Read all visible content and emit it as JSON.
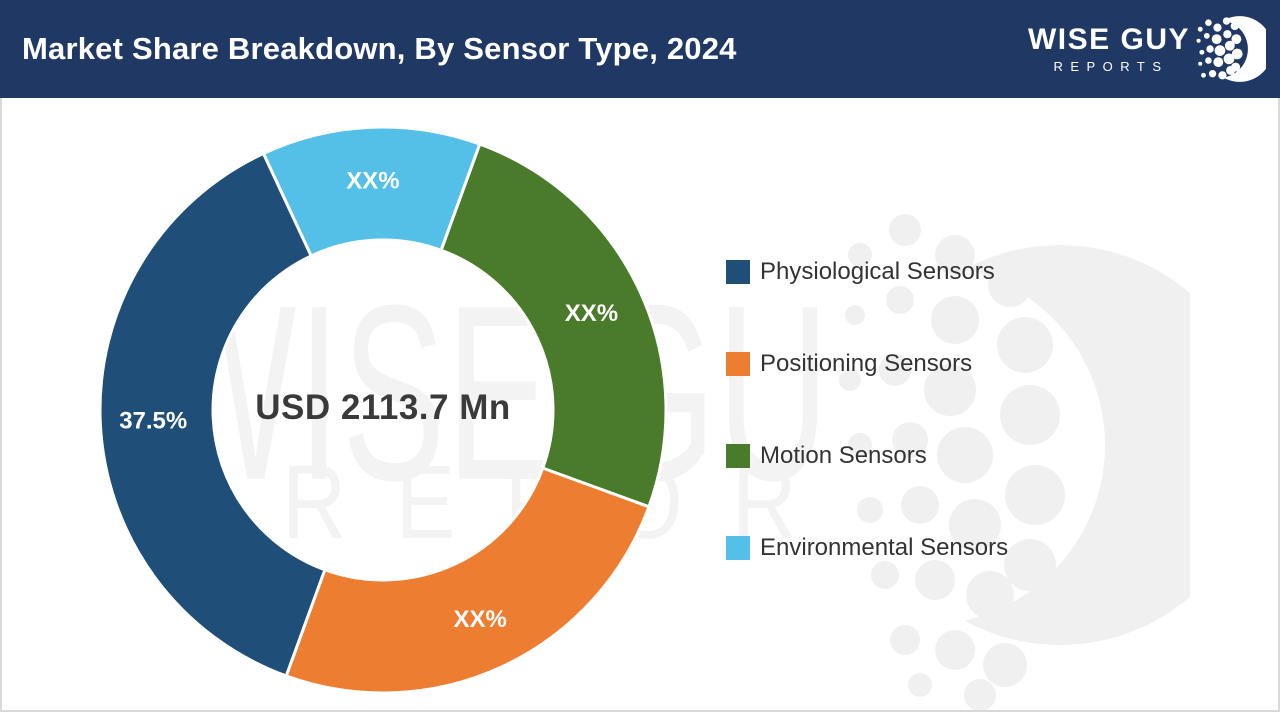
{
  "header": {
    "title": "Market Share Breakdown, By Sensor Type, 2024",
    "logo": {
      "name": "WISE GUY",
      "sub": "REPORTS"
    }
  },
  "chart_data": {
    "type": "donut",
    "title": "Market Share Breakdown, By Sensor Type, 2024",
    "center_label": "USD 2113.7 Mn",
    "start_bearing_deg": -25,
    "direction": "clockwise",
    "segments": [
      {
        "label": "Environmental Sensors",
        "value_label": "XX%",
        "percent": 12.5,
        "color": "#54c0e8"
      },
      {
        "label": "Motion Sensors",
        "value_label": "XX%",
        "percent": 25,
        "color": "#4a7b2b"
      },
      {
        "label": "Positioning Sensors",
        "value_label": "XX%",
        "percent": 25,
        "color": "#ed7d31"
      },
      {
        "label": "Physiological Sensors",
        "value_label": "37.5%",
        "percent": 37.5,
        "color": "#1f4e78"
      }
    ],
    "legend": [
      {
        "label": "Physiological Sensors",
        "color": "#1f4e78"
      },
      {
        "label": "Positioning Sensors",
        "color": "#ed7d31"
      },
      {
        "label": "Motion Sensors",
        "color": "#4a7b2b"
      },
      {
        "label": "Environmental Sensors",
        "color": "#54c0e8"
      }
    ],
    "legend_position": "right"
  },
  "watermark": {
    "line1": "WISE GUY",
    "line2": "REPORTS"
  },
  "colors": {
    "header_bg": "#1f3864",
    "text_on_header": "#ffffff",
    "center_text": "#3a3a3a",
    "legend_text": "#333333",
    "frame_border": "#d9d9d9",
    "watermark": "#f3f3f3"
  }
}
